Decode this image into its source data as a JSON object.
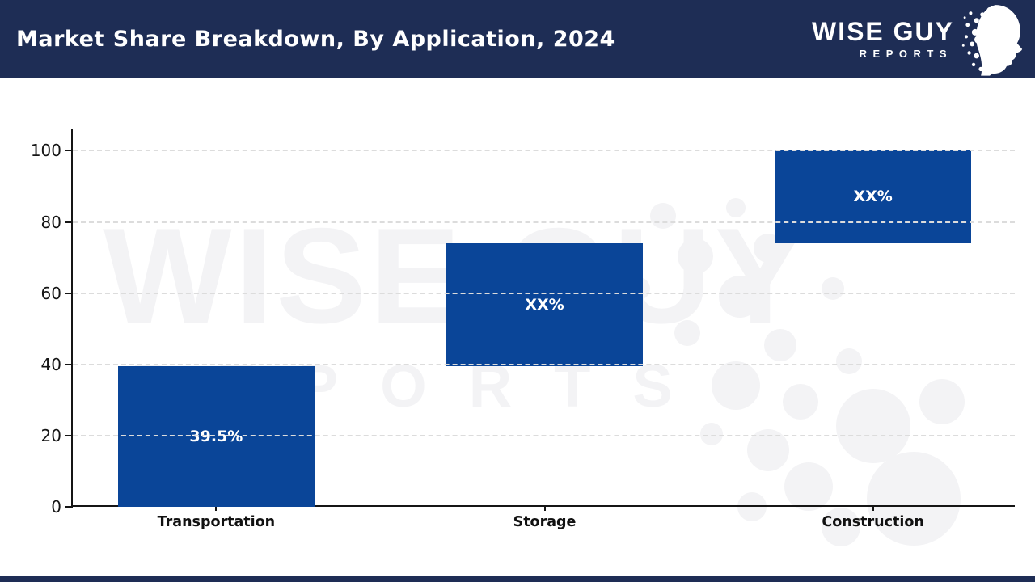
{
  "header": {
    "title": "Market Share Breakdown, By Application, 2024",
    "bg_color": "#1e2d55",
    "text_color": "#ffffff",
    "logo": {
      "line1": "WISE GUY",
      "line2": "REPORTS",
      "face_icon": "dotted-head-profile"
    }
  },
  "watermark": {
    "line1": "WISE GUY",
    "line2": "REPORTS",
    "color": "#f3f3f5"
  },
  "chart_data": {
    "type": "bar",
    "variant": "stepped-waterfall",
    "title": "Market Share Breakdown, By Application, 2024",
    "categories": [
      "Transportation",
      "Storage",
      "Construction"
    ],
    "segments": [
      {
        "category": "Transportation",
        "start": 0,
        "end": 39.5,
        "label": "39.5%",
        "value_pct": 39.5
      },
      {
        "category": "Storage",
        "start": 39.5,
        "end": 74.1,
        "label": "XX%",
        "value_pct": 34.6
      },
      {
        "category": "Construction",
        "start": 74.1,
        "end": 100,
        "label": "XX%",
        "value_pct": 25.9
      }
    ],
    "ylim": [
      0,
      100
    ],
    "yticks": [
      0,
      20,
      40,
      60,
      80,
      100
    ],
    "grid": {
      "axis": "y",
      "style": "dashed",
      "color": "#dcdcdc",
      "above_bars": true
    },
    "legend": "none",
    "bar_color": "#0a4598",
    "bar_label_color": "#ffffff",
    "axis_color": "#151515"
  },
  "footer": {
    "bar_color": "#1e2d55"
  }
}
